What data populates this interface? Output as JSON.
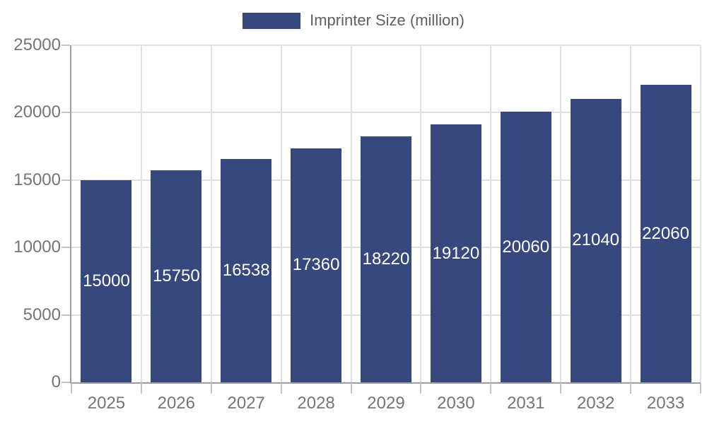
{
  "legend": {
    "label": "Imprinter Size (million)"
  },
  "chart_data": {
    "type": "bar",
    "title": "",
    "series_name": "Imprinter Size (million)",
    "categories": [
      "2025",
      "2026",
      "2027",
      "2028",
      "2029",
      "2030",
      "2031",
      "2032",
      "2033"
    ],
    "values": [
      15000,
      15750,
      16538,
      17360,
      18220,
      19120,
      20060,
      21040,
      22060
    ],
    "value_labels": [
      "15000",
      "15750",
      "16538",
      "17360",
      "18220",
      "19120",
      "20060",
      "21040",
      "22060"
    ],
    "xlabel": "",
    "ylabel": "",
    "ylim": [
      0,
      25000
    ],
    "yticks": [
      0,
      5000,
      10000,
      15000,
      20000,
      25000
    ],
    "grid": true,
    "legend_position": "top-center",
    "bar_labels_inside": true,
    "colors": {
      "bar": "#36487e",
      "bar_label": "#ffffff",
      "axis_line": "#9e9e9e",
      "grid_line": "#e0e0e4",
      "tick_mark": "#c4c4c4",
      "tick_text": "#757575",
      "legend_text": "#606060",
      "background": "#ffffff"
    }
  }
}
